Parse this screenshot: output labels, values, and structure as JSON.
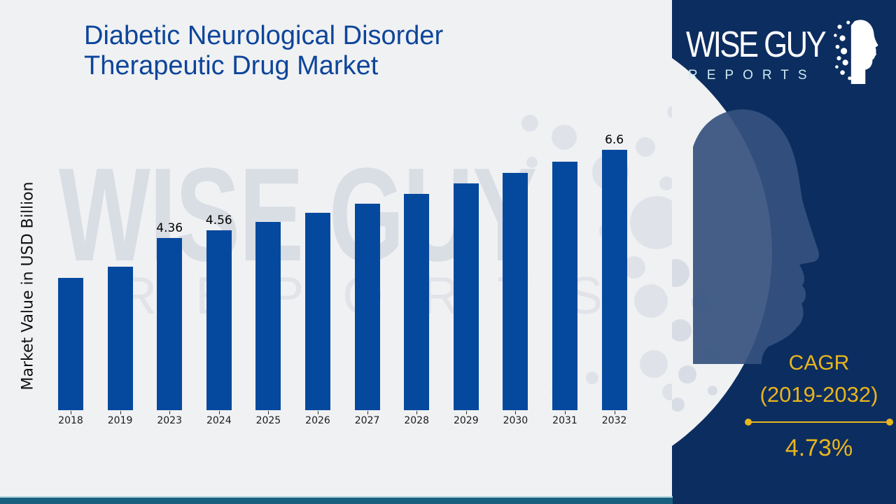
{
  "header": {
    "title_line1": "Diabetic Neurological Disorder",
    "title_line2": "Therapeutic Drug Market",
    "title_color": "#0d459a"
  },
  "watermark": {
    "line1": "WISE GUY",
    "line2": "REPORTS"
  },
  "brand_panel": {
    "logo_line1": "WISE GUY",
    "logo_line2": "REPORTS",
    "cagr_label": "CAGR",
    "cagr_range": "(2019-2032)",
    "cagr_value": "4.73%",
    "panel_color": "#0c2d5f",
    "accent_gold": "#e9b51d",
    "footer_strip_color": "#19607f"
  },
  "chart_data": {
    "type": "bar",
    "title": "Diabetic Neurological Disorder Therapeutic Drug Market",
    "xlabel": "",
    "ylabel": "Market Value in USD Billion",
    "categories": [
      "2018",
      "2019",
      "2023",
      "2024",
      "2025",
      "2026",
      "2027",
      "2028",
      "2029",
      "2030",
      "2031",
      "2032"
    ],
    "values": [
      3.35,
      3.63,
      4.36,
      4.56,
      4.78,
      5.0,
      5.23,
      5.48,
      5.74,
      6.01,
      6.29,
      6.6
    ],
    "data_labels": [
      "",
      "",
      "4.36",
      "4.56",
      "",
      "",
      "",
      "",
      "",
      "",
      "",
      "6.6"
    ],
    "bar_color": "#05499e",
    "ylim": [
      0,
      7
    ],
    "grid": false,
    "legend": null
  }
}
